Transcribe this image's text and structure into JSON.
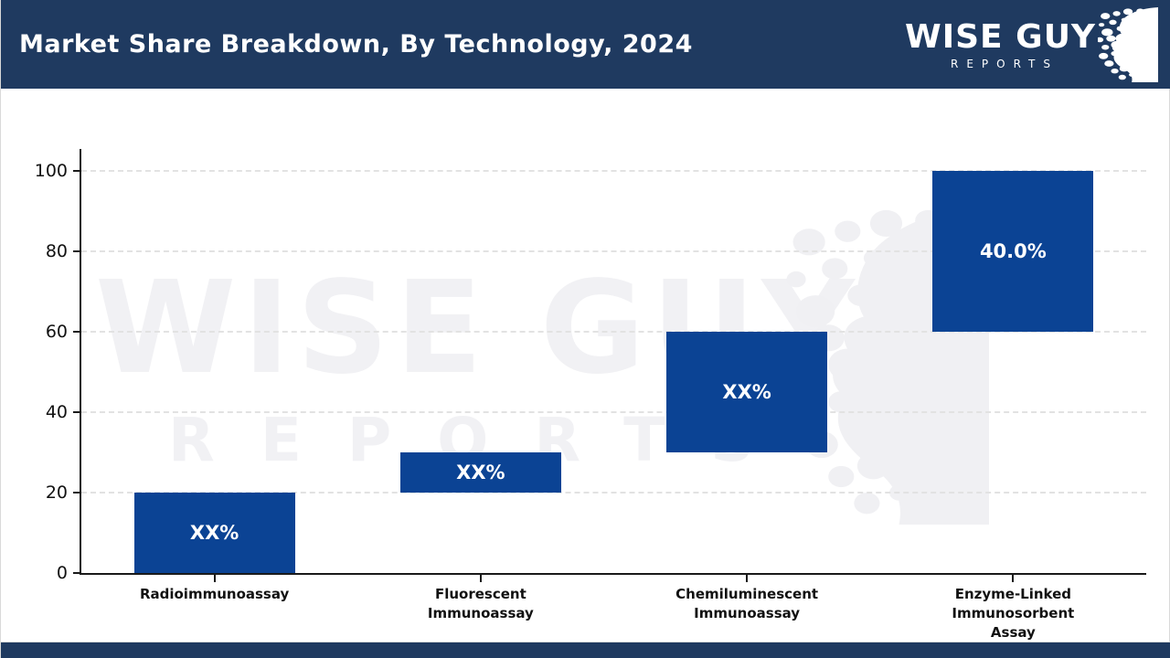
{
  "header": {
    "title": "Market Share Breakdown, By Technology, 2024"
  },
  "logo": {
    "line1": "WISE GUY",
    "line2": "REPORTS"
  },
  "watermark": {
    "line1": "WISE GUY",
    "line2": "REPORTS"
  },
  "chart_data": {
    "type": "bar",
    "subtype": "waterfall",
    "title": "Market Share Breakdown, By Technology, 2024",
    "categories": [
      "Radioimmunoassay",
      "Fluorescent\nImmunoassay",
      "Chemiluminescent\nImmunoassay",
      "Enzyme-Linked\nImmunosorbent\nAssay"
    ],
    "segments": [
      {
        "start": 0,
        "end": 20,
        "label": "XX%"
      },
      {
        "start": 20,
        "end": 30,
        "label": "XX%"
      },
      {
        "start": 30,
        "end": 60,
        "label": "XX%"
      },
      {
        "start": 60,
        "end": 100,
        "label": "40.0%"
      }
    ],
    "yticks": [
      0,
      20,
      40,
      60,
      80,
      100
    ],
    "ylim": [
      0,
      105
    ],
    "xlabel": "",
    "ylabel": "",
    "grid": true,
    "grid_style": "dashed",
    "legend": "none",
    "bar_color": "#0b4394"
  },
  "colors": {
    "header_bg": "#1f3a60",
    "footer_bg": "#1f3a60",
    "bar_blue": "#0b4394",
    "grid_gray": "#e2e2e2",
    "axis_black": "#1a1a1a",
    "watermark_gray": "#f1f1f4",
    "white": "#ffffff"
  }
}
